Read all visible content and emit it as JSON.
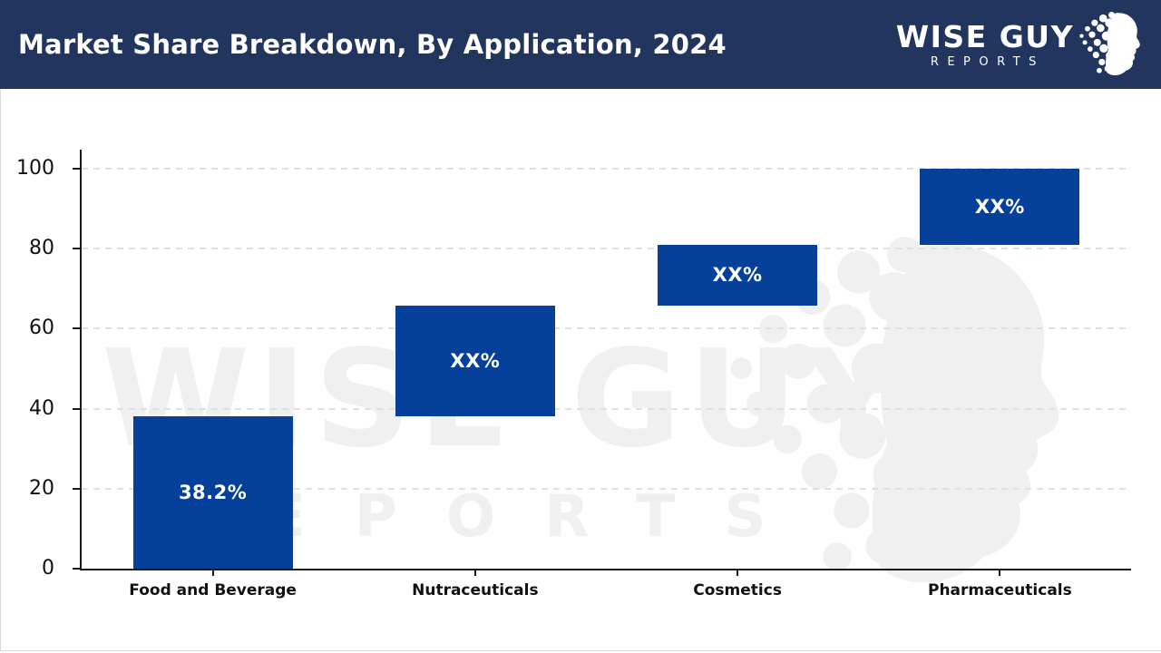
{
  "header": {
    "title": "Market Share Breakdown, By Application, 2024",
    "logo": {
      "line1": "WISE GUY",
      "line2": "REPORTS"
    }
  },
  "watermark": {
    "line1": "WISE GUY",
    "line2": "REPORTS"
  },
  "colors": {
    "header_bg": "#21355e",
    "bar": "#05419b",
    "grid": "#e0e0e0",
    "axis": "#1a1a1a",
    "watermark": "#f0f0f0"
  },
  "chart_data": {
    "type": "bar",
    "subtype": "waterfall-breakdown",
    "title": "Market Share Breakdown, By Application, 2024",
    "categories": [
      "Food and Beverage",
      "Nutraceuticals",
      "Cosmetics",
      "Pharmaceuticals"
    ],
    "segments": [
      {
        "category": "Food and Beverage",
        "start": 0,
        "end": 38.2,
        "label": "38.2%"
      },
      {
        "category": "Nutraceuticals",
        "start": 38.2,
        "end": 65.8,
        "label": "XX%"
      },
      {
        "category": "Cosmetics",
        "start": 65.8,
        "end": 81.0,
        "label": "XX%"
      },
      {
        "category": "Pharmaceuticals",
        "start": 81.0,
        "end": 100,
        "label": "XX%"
      }
    ],
    "xlabel": "",
    "ylabel": "",
    "ylim": [
      0,
      100
    ],
    "yticks": [
      0,
      20,
      40,
      60,
      80,
      100
    ],
    "grid": "horizontal-dashed",
    "legend": "none",
    "bar_color": "#05419b"
  }
}
